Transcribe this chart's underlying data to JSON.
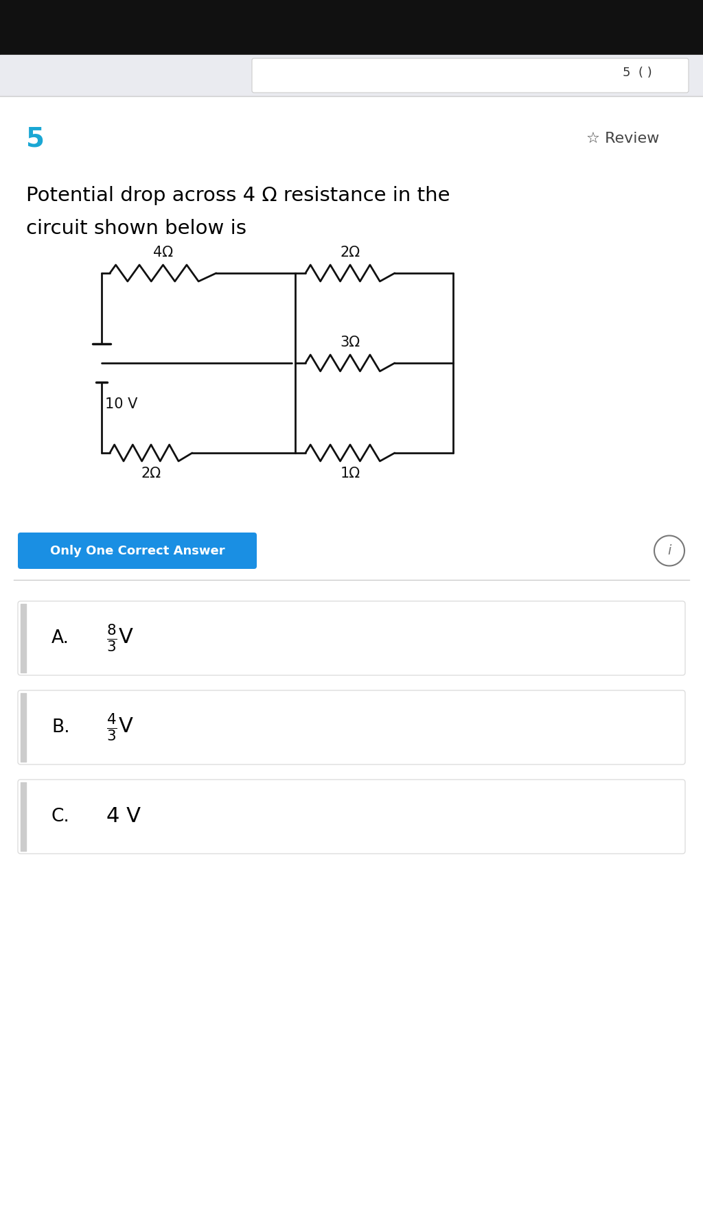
{
  "white": "#ffffff",
  "black": "#000000",
  "question_num": "5",
  "question_num_color": "#1aa7d4",
  "review_text": "☆ Review",
  "review_color": "#444444",
  "question_text_line1": "Potential drop across 4 Ω resistance in the",
  "question_text_line2": "circuit shown below is",
  "question_fontsize": 20,
  "label_button_text": "Only One Correct Answer",
  "label_button_color": "#1a8fe3",
  "answer_A_label": "A.",
  "answer_A_val": "$\\frac{8}{3}$V",
  "answer_B_label": "B.",
  "answer_B_val": "$\\frac{4}{3}$V",
  "answer_C_label": "C.",
  "answer_C_val": "4 V",
  "top_bar_color": "#111111",
  "nav_bar_color": "#eaebf0",
  "nav_text": "5  ( )",
  "circuit_color": "#111111",
  "res_4_label": "4Ω",
  "res_2top_label": "2Ω",
  "res_3_label": "3Ω",
  "res_2bot_label": "2Ω",
  "res_1_label": "1Ω",
  "battery_label": "10 V"
}
